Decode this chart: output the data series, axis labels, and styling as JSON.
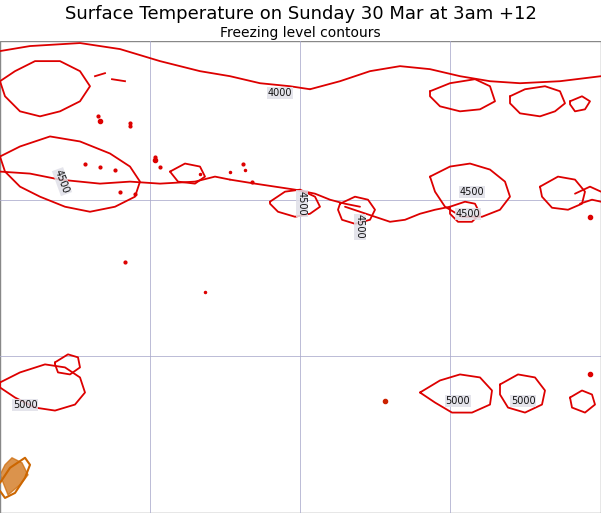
{
  "title": "Surface Temperature on Sunday 30 Mar at 3am +12",
  "subtitle": "Freezing level contours",
  "title_fontsize": 13,
  "subtitle_fontsize": 10,
  "bg_color": "#c8cce8",
  "map_bg_color": "#c8cce8",
  "header_bg": "#ffffff",
  "contour_color_red": "#dd0000",
  "contour_color_orange": "#cc6600",
  "grid_color": "#aaaacc",
  "label_bg": "#e0e0e8",
  "fig_width": 6.01,
  "fig_height": 5.13,
  "dpi": 100,
  "border_color": "#888888"
}
